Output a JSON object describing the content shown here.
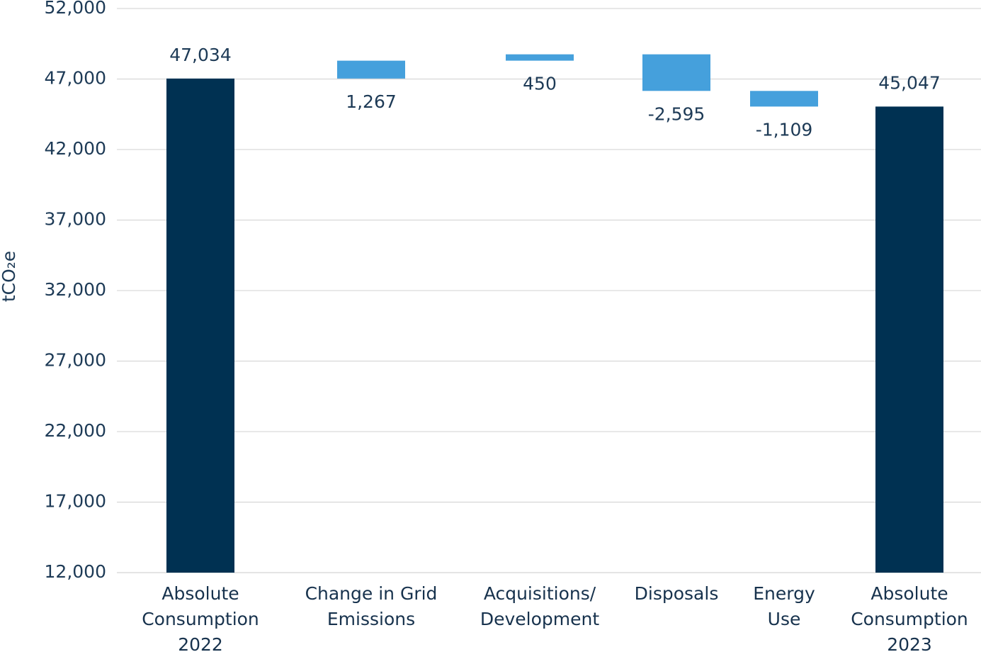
{
  "chart_data": {
    "type": "waterfall",
    "y_label": "tCO₂e",
    "categories": [
      "Absolute Consumption 2022",
      "Change in Grid Emissions",
      "Acquisitions/ Development",
      "Disposals",
      "Energy Use",
      "Absolute Consumption 2023"
    ],
    "values": [
      47034,
      1267,
      450,
      -2595,
      -1109,
      45047
    ],
    "value_labels": [
      "47,034",
      "1,267",
      "450",
      "-2,595",
      "-1,109",
      "45,047"
    ],
    "measure": [
      "total",
      "relative",
      "relative",
      "relative",
      "relative",
      "total"
    ],
    "total_color": "#003152",
    "delta_color": "#45a0dc",
    "ylim": [
      12000,
      52000
    ],
    "yticks": [
      {
        "value": 12000,
        "label": "12,000"
      },
      {
        "value": 17000,
        "label": "17,000"
      },
      {
        "value": 22000,
        "label": "22,000"
      },
      {
        "value": 27000,
        "label": "27,000"
      },
      {
        "value": 32000,
        "label": "32,000"
      },
      {
        "value": 37000,
        "label": "37,000"
      },
      {
        "value": 42000,
        "label": "42,000"
      },
      {
        "value": 47000,
        "label": "47,000"
      },
      {
        "value": 52000,
        "label": "52,000"
      }
    ],
    "grid": true
  }
}
